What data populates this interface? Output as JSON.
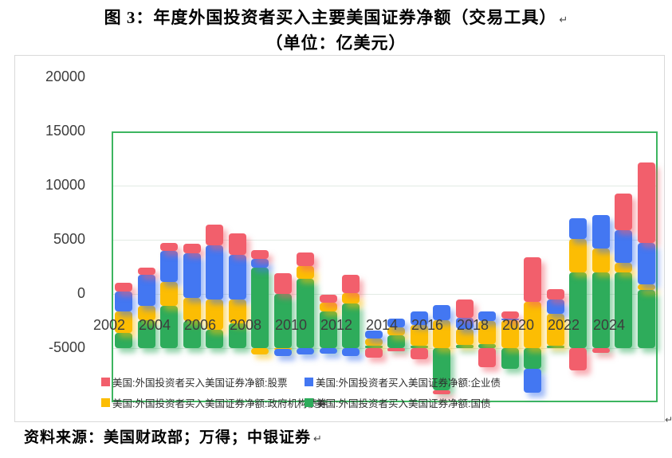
{
  "page": {
    "title_line1": "图 3：年度外国投资者买入主要美国证券净额（交易工具）",
    "title_line2": "（单位：亿美元）",
    "paragraph_mark": "↵",
    "source_line": "资料来源：美国财政部；万得；中银证券"
  },
  "colors": {
    "equity_red": "#F25F6C",
    "corporate_blue": "#4377F2",
    "agency_yellow": "#FCBD03",
    "treasury_green": "#2EAC5B",
    "plot_border_green": "#3db560",
    "gridline": "#e2ebe4",
    "axis_text": "#3d3d3d",
    "frame_gray": "#d9d9d9"
  },
  "chart_data": {
    "type": "bar",
    "stacked": true,
    "title": "年度外国投资者买入主要美国证券净额（交易工具）",
    "unit": "亿美元",
    "xlabel": "",
    "ylabel": "",
    "ylim": [
      -5000,
      20000
    ],
    "grid": true,
    "legend_position": "bottom",
    "x": [
      2002,
      2003,
      2004,
      2005,
      2006,
      2007,
      2008,
      2009,
      2010,
      2011,
      2012,
      2013,
      2014,
      2015,
      2016,
      2017,
      2018,
      2019,
      2020,
      2021,
      2022,
      2023,
      2024,
      2025
    ],
    "x_tick_labels": [
      "2002",
      "2004",
      "2006",
      "2008",
      "2010",
      "2012",
      "2014",
      "2016",
      "2018",
      "2020",
      "2022",
      "2024"
    ],
    "y_ticks": [
      20000,
      15000,
      10000,
      5000,
      0,
      -5000
    ],
    "y_tick_labels": [
      "20000",
      "15000",
      "10000",
      "5000",
      "0",
      "-5000"
    ],
    "series": [
      {
        "name": "美国:外国投资者买入美国证券净额:国债",
        "color": "#2EAC5B",
        "values": [
          1400,
          2600,
          3900,
          2500,
          1700,
          2300,
          7400,
          5000,
          6400,
          3400,
          4100,
          200,
          1200,
          200,
          -3900,
          300,
          350,
          -1900,
          -1900,
          250,
          7000,
          7000,
          7000,
          5400
        ]
      },
      {
        "name": "美国:外国投资者买入美国证券净额:政府机构债券",
        "color": "#FCBD03",
        "values": [
          2000,
          1300,
          2200,
          2100,
          2800,
          2200,
          -600,
          -100,
          1150,
          800,
          1000,
          700,
          700,
          1900,
          2600,
          1450,
          2150,
          2550,
          4300,
          2900,
          3050,
          2200,
          850,
          500
        ]
      },
      {
        "name": "美国:外国投资者买入美国证券净额:企业债",
        "color": "#4377F2",
        "values": [
          1800,
          2900,
          2850,
          4150,
          5000,
          4100,
          800,
          -600,
          -600,
          -500,
          -700,
          700,
          800,
          1300,
          1400,
          1050,
          850,
          150,
          -2200,
          1300,
          1900,
          3050,
          3050,
          3800
        ]
      },
      {
        "name": "美国:外国投资者买入美国证券净额:股票",
        "color": "#F25F6C",
        "values": [
          800,
          600,
          750,
          850,
          1900,
          2000,
          850,
          1900,
          1300,
          750,
          1700,
          -900,
          -300,
          -1000,
          -350,
          1700,
          -1800,
          700,
          4100,
          1000,
          -2050,
          -450,
          3400,
          7400
        ]
      }
    ],
    "legend": [
      {
        "label": "美国:外国投资者买入美国证券净额:股票",
        "color": "#F25F6C"
      },
      {
        "label": "美国:外国投资者买入美国证券净额:企业债",
        "color": "#4377F2"
      },
      {
        "label": "美国:外国投资者买入美国证券净额:政府机构债券",
        "color": "#FCBD03"
      },
      {
        "label": "美国:外国投资者买入美国证券净额:国债",
        "color": "#2EAC5B"
      }
    ]
  }
}
